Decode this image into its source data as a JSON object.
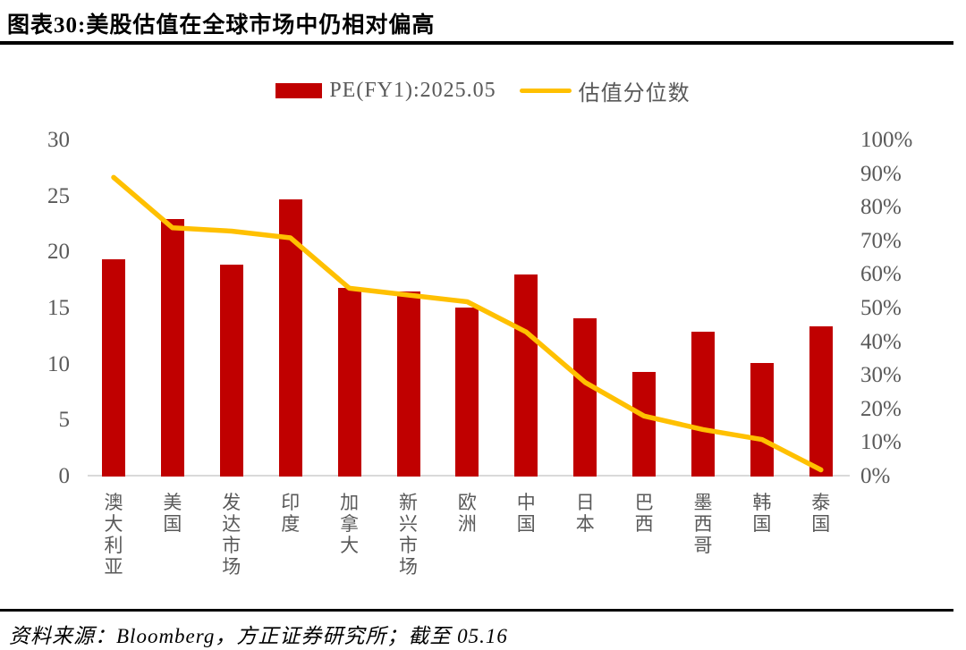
{
  "page": {
    "title": "图表30:美股估值在全球市场中仍相对偏高",
    "source_note": "资料来源：Bloomberg，方正证券研究所；截至 05.16"
  },
  "legend": {
    "bar_label": "PE(FY1):2025.05",
    "line_label": "估值分位数"
  },
  "colors": {
    "bar": "#C00000",
    "line": "#FFC000",
    "axis_text": "#595959",
    "axis_line": "#D9D9D9",
    "title_text": "#000000"
  },
  "chart_data": {
    "type": "bar",
    "title": "图表30:美股估值在全球市场中仍相对偏高",
    "categories": [
      "澳大利亚",
      "美国",
      "发达市场",
      "印度",
      "加拿大",
      "新兴市场",
      "欧洲",
      "中国",
      "日本",
      "巴西",
      "墨西哥",
      "韩国",
      "泰国"
    ],
    "series": [
      {
        "name": "PE(FY1):2025.05",
        "type": "bar",
        "axis": "left",
        "values": [
          19.4,
          23.0,
          18.9,
          24.7,
          16.8,
          16.5,
          15.1,
          18.0,
          14.1,
          9.3,
          12.9,
          10.1,
          13.4
        ]
      },
      {
        "name": "估值分位数",
        "type": "line",
        "axis": "right",
        "unit": "%",
        "values": [
          89,
          74,
          73,
          71,
          56,
          54,
          52,
          43,
          28,
          18,
          14,
          11,
          2
        ]
      }
    ],
    "left_axis": {
      "label": "",
      "min": 0,
      "max": 30,
      "tick_step": 5,
      "ticks": [
        "0",
        "5",
        "10",
        "15",
        "20",
        "25",
        "30"
      ]
    },
    "right_axis": {
      "label": "",
      "min": 0,
      "max": 100,
      "tick_step": 10,
      "ticks": [
        "0%",
        "10%",
        "20%",
        "30%",
        "40%",
        "50%",
        "60%",
        "70%",
        "80%",
        "90%",
        "100%"
      ]
    },
    "grid": false,
    "legend_position": "top-center"
  }
}
